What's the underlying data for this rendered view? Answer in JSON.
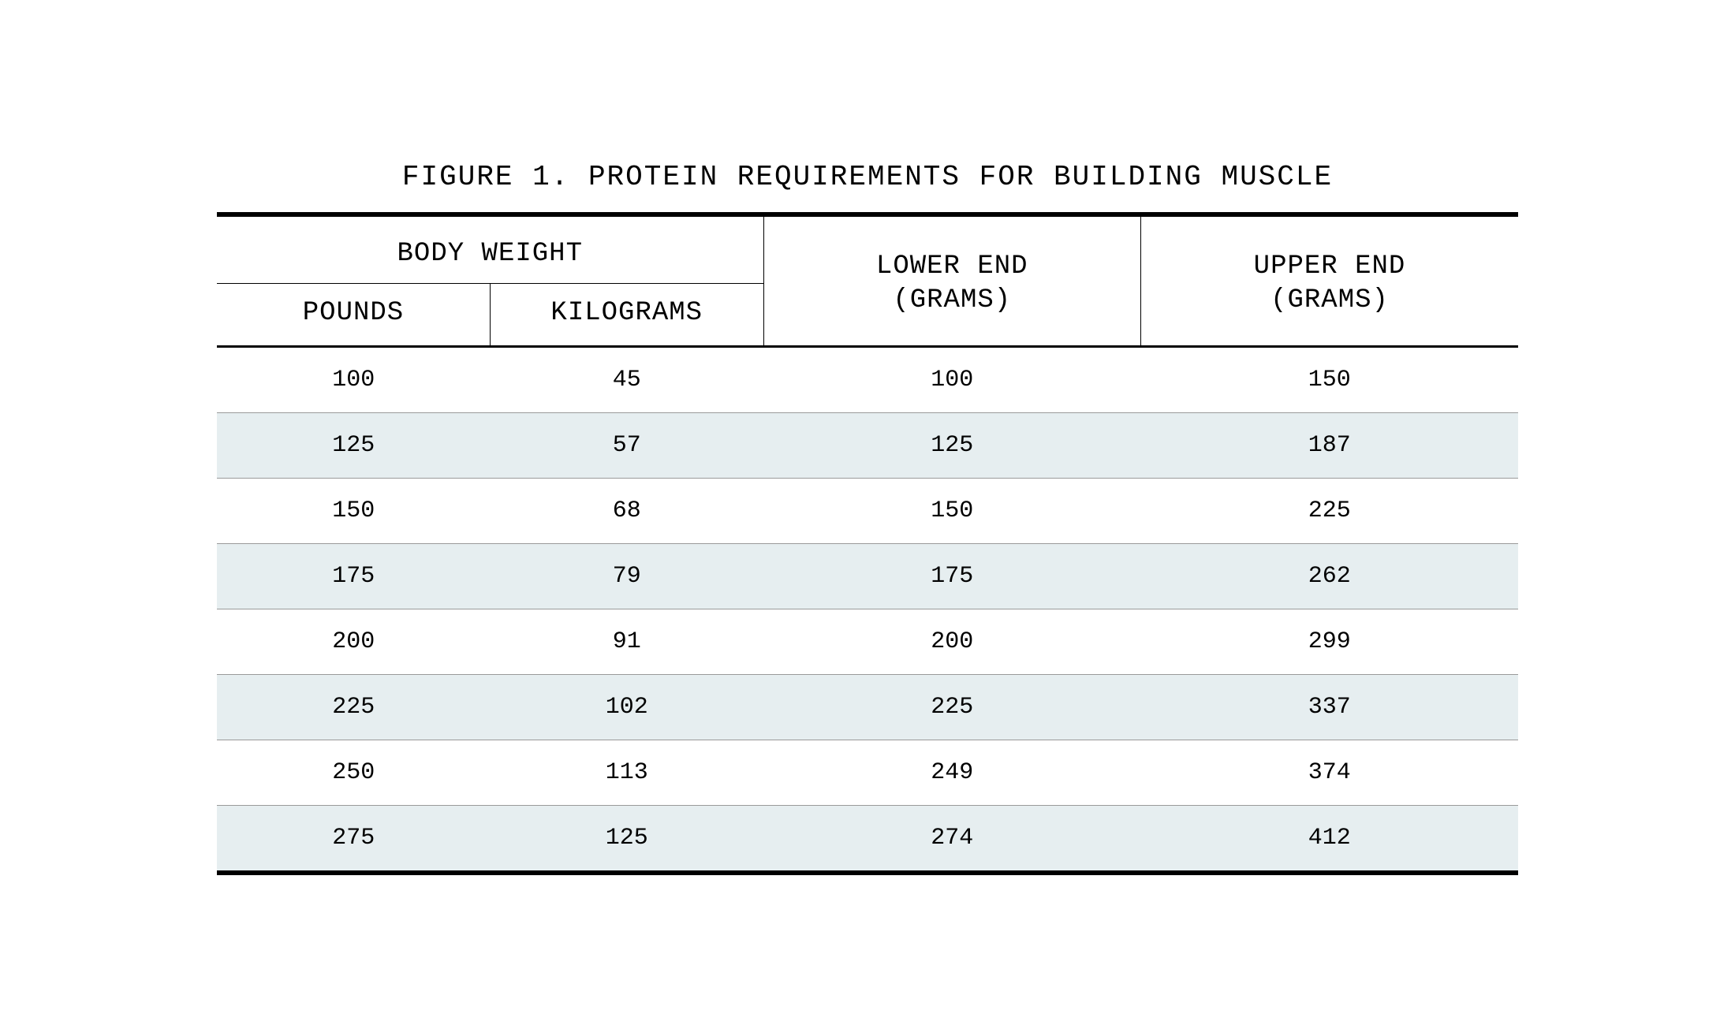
{
  "figure": {
    "title": "FIGURE 1. PROTEIN REQUIREMENTS FOR BUILDING MUSCLE",
    "type": "table",
    "background_color": "#ffffff",
    "stripe_color": "#e6eef0",
    "border_color_heavy": "#000000",
    "border_color_light": "#9a9a9a",
    "title_fontsize": 36,
    "header_fontsize": 34,
    "cell_fontsize": 30,
    "font_family": "Courier New",
    "columns": {
      "group": "BODY WEIGHT",
      "pounds": "POUNDS",
      "kilograms": "KILOGRAMS",
      "lower_line1": "LOWER END",
      "lower_line2": "(GRAMS)",
      "upper_line1": "UPPER END",
      "upper_line2": "(GRAMS)"
    },
    "column_widths_pct": [
      21,
      21,
      29,
      29
    ],
    "rows": [
      {
        "pounds": "100",
        "kilograms": "45",
        "lower": "100",
        "upper": "150"
      },
      {
        "pounds": "125",
        "kilograms": "57",
        "lower": "125",
        "upper": "187"
      },
      {
        "pounds": "150",
        "kilograms": "68",
        "lower": "150",
        "upper": "225"
      },
      {
        "pounds": "175",
        "kilograms": "79",
        "lower": "175",
        "upper": "262"
      },
      {
        "pounds": "200",
        "kilograms": "91",
        "lower": "200",
        "upper": "299"
      },
      {
        "pounds": "225",
        "kilograms": "102",
        "lower": "225",
        "upper": "337"
      },
      {
        "pounds": "250",
        "kilograms": "113",
        "lower": "249",
        "upper": "374"
      },
      {
        "pounds": "275",
        "kilograms": "125",
        "lower": "274",
        "upper": "412"
      }
    ]
  }
}
